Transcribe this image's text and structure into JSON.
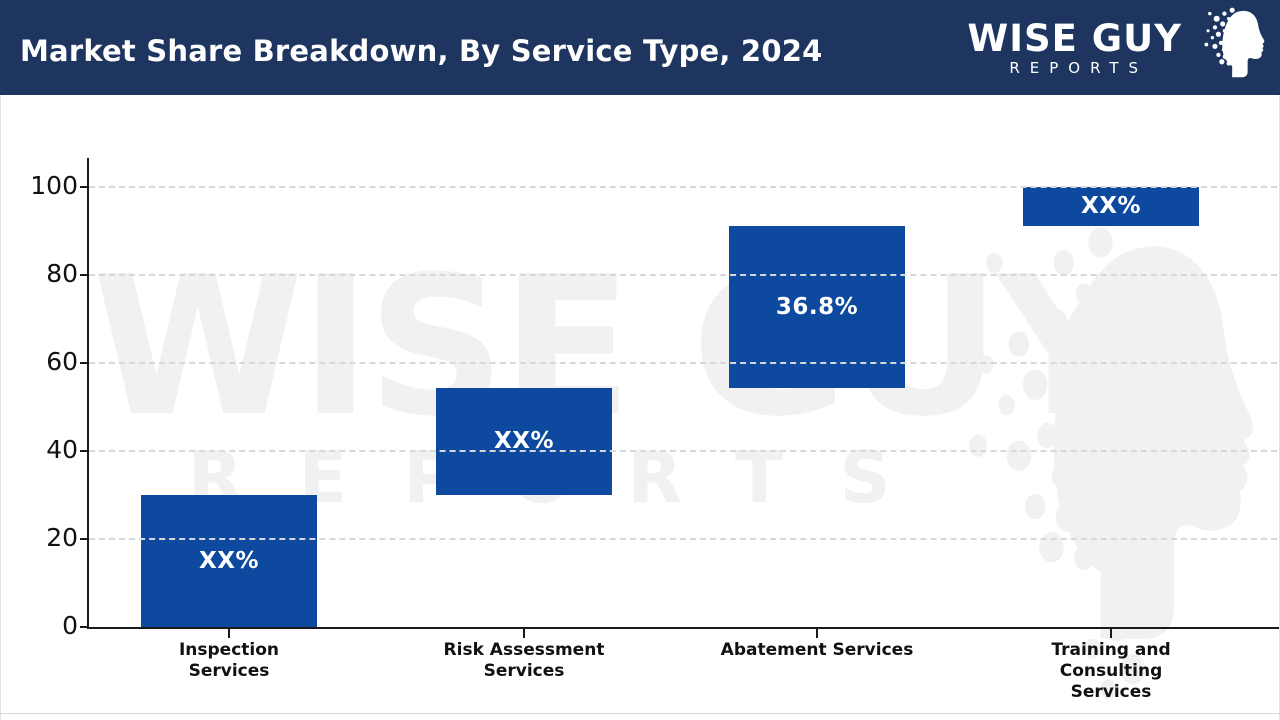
{
  "header": {
    "title": "Market Share Breakdown, By Service Type, 2024",
    "logo": {
      "wordmark": "WISE GUY",
      "subtext": "REPORTS"
    }
  },
  "watermark": {
    "wordmark": "WISE GUY",
    "subtext": "REPORTS"
  },
  "colors": {
    "header_bg": "#1e3560",
    "bar": "#0d4a9f",
    "grid": "#d8d8d8",
    "axis": "#1a1a1a",
    "watermark": "#f1f1f1",
    "title_text": "#ffffff",
    "bar_label_text": "#ffffff"
  },
  "chart_data": {
    "type": "bar",
    "subtype": "floating-waterfall",
    "title": "Market Share Breakdown, By Service Type, 2024",
    "categories": [
      "Inspection\nServices",
      "Risk Assessment\nServices",
      "Abatement Services",
      "Training and\nConsulting\nServices"
    ],
    "segments": [
      {
        "name": "Inspection Services",
        "start": 0,
        "end": 30,
        "label": "XX%"
      },
      {
        "name": "Risk Assessment Services",
        "start": 30,
        "end": 54.4,
        "label": "XX%"
      },
      {
        "name": "Abatement Services",
        "start": 54.4,
        "end": 91.2,
        "label": "36.8%"
      },
      {
        "name": "Training and Consulting Services",
        "start": 91.2,
        "end": 100,
        "label": "XX%"
      }
    ],
    "values_pct": [
      30,
      24.4,
      36.8,
      8.8
    ],
    "yticks": [
      0,
      20,
      40,
      60,
      80,
      100
    ],
    "ylim": [
      0,
      106
    ],
    "xlabel": "",
    "ylabel": "",
    "grid": "horizontal-dashed",
    "legend": "none",
    "bar_color": "#0d4a9f"
  }
}
